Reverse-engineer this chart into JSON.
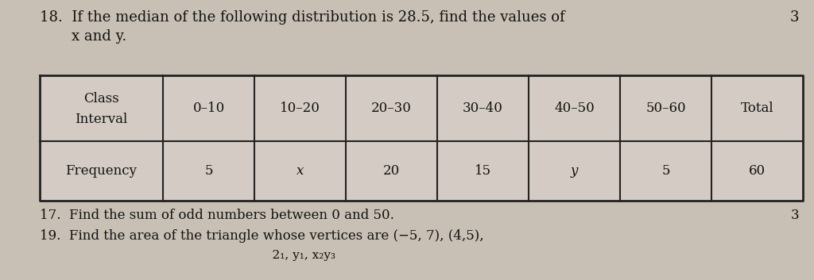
{
  "title_line1": "18.  If the median of the following distribution is 28.5, find the values of",
  "title_line2": "x and y.",
  "mark": "3",
  "table_headers": [
    "Class\nInterval",
    "0–10",
    "10–20",
    "20–30",
    "30–40",
    "40–50",
    "50–60",
    "Total"
  ],
  "table_row_label": "Frequency",
  "table_row_values": [
    "5",
    "x",
    "20",
    "15",
    "y",
    "5",
    "60"
  ],
  "footer_line1": "17.  Find the sum of odd numbers between 0 and 50.",
  "footer_mark1": "3",
  "footer_line2": "19.  Find the area of the triangle whose vertices are (−5, 7), (4,5),",
  "footer_line3": "                                                            2₁, y₁, x₂y₃",
  "bg_color": "#c8c0b4",
  "table_bg": "#d4ccc4",
  "table_line_color": "#222222",
  "text_color": "#111111",
  "font_size_main": 13,
  "font_size_table": 12,
  "font_size_footer": 12
}
